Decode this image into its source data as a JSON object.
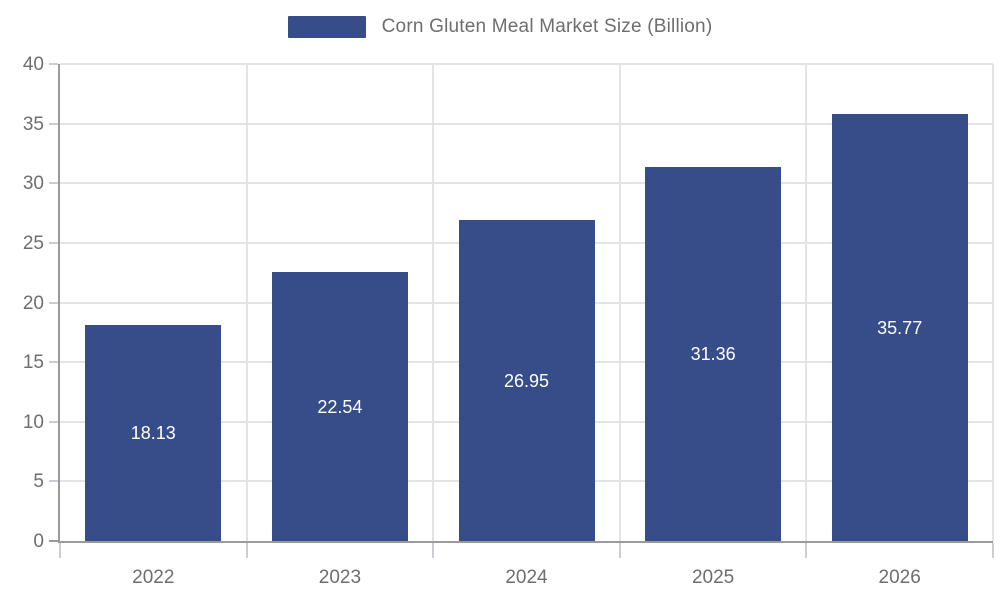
{
  "colors": {
    "bar": "#364d89",
    "grid": "#e4e4e4",
    "axis": "#9a9a9a",
    "tick": "#c9cdd4",
    "text": "#6e6e6e",
    "value_label": "#ffffff",
    "background": "#ffffff"
  },
  "chart_data": {
    "type": "bar",
    "title": "Corn Gluten Meal Market Size (Billion)",
    "categories": [
      "2022",
      "2023",
      "2024",
      "2025",
      "2026"
    ],
    "values": [
      18.13,
      22.54,
      26.95,
      31.36,
      35.77
    ],
    "value_labels": [
      "18.13",
      "22.54",
      "26.95",
      "31.36",
      "35.77"
    ],
    "xlabel": "",
    "ylabel": "",
    "ylim": [
      0,
      40
    ],
    "ytick_step": 5,
    "ytick_labels": [
      "0",
      "5",
      "10",
      "15",
      "20",
      "25",
      "30",
      "35",
      "40"
    ],
    "grid": true,
    "legend": [
      "Corn Gluten Meal Market Size (Billion)"
    ],
    "legend_position": "top-center",
    "value_label_position": "inside-middle"
  }
}
